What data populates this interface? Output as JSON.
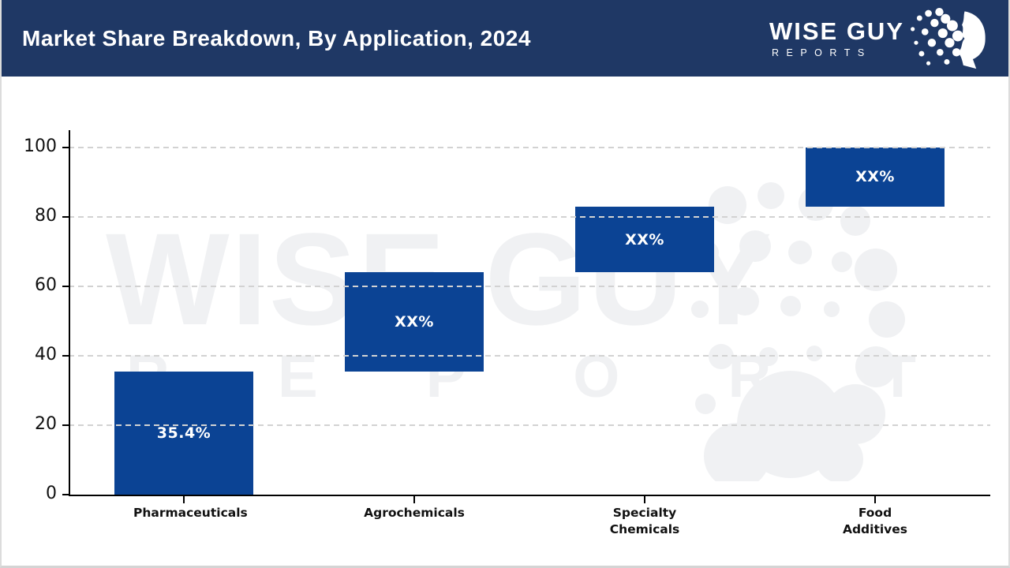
{
  "header": {
    "title": "Market Share Breakdown, By Application, 2024",
    "logo": {
      "wordmark": "WISE GUY",
      "subtext": "REPORTS"
    }
  },
  "watermark": {
    "line1": "WISE GUY",
    "line2": "REPORTS"
  },
  "colors": {
    "header_bg": "#1f3865",
    "bar": "#0b4394",
    "bar_label": "#ffffff",
    "gridline": "#d2d2d2",
    "axis": "#000000",
    "watermark": "#f0f1f3"
  },
  "chart_data": {
    "type": "bar",
    "subtype": "floating-waterfall",
    "title": "Market Share Breakdown, By Application, 2024",
    "xlabel": "",
    "ylabel": "",
    "ylim": [
      0,
      100
    ],
    "yticks": [
      0,
      20,
      40,
      60,
      80,
      100
    ],
    "grid": "horizontal-dashed-over-bars",
    "legend": "none",
    "categories": [
      "Pharmaceuticals",
      "Agrochemicals",
      "Specialty Chemicals",
      "Food Additives"
    ],
    "bars": [
      {
        "category": "Pharmaceuticals",
        "start": 0,
        "end": 35.4,
        "label": "35.4%"
      },
      {
        "category": "Agrochemicals",
        "start": 35.4,
        "end": 64,
        "label": "XX%"
      },
      {
        "category": "Specialty Chemicals",
        "start": 64,
        "end": 83,
        "label": "XX%"
      },
      {
        "category": "Food Additives",
        "start": 83,
        "end": 100,
        "label": "XX%"
      }
    ]
  }
}
